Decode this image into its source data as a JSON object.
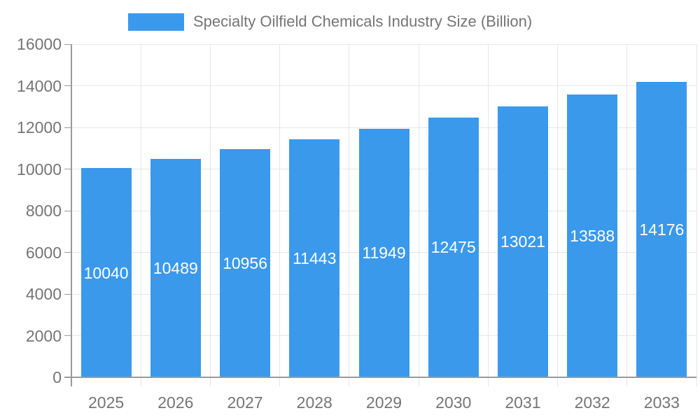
{
  "chart_data": {
    "type": "bar",
    "legend": [
      "Specialty Oilfield Chemicals Industry Size (Billion)"
    ],
    "legend_position": "top",
    "categories": [
      "2025",
      "2026",
      "2027",
      "2028",
      "2029",
      "2030",
      "2031",
      "2032",
      "2033"
    ],
    "values": [
      10040,
      10489,
      10956,
      11443,
      11949,
      12475,
      13021,
      13588,
      14176
    ],
    "xlabel": "",
    "ylabel": "",
    "ylim": [
      0,
      16000
    ],
    "yticks": [
      0,
      2000,
      4000,
      6000,
      8000,
      10000,
      12000,
      14000,
      16000
    ],
    "grid": true,
    "value_labels_inside_bars": true,
    "colors": {
      "bar": "#3b99ec",
      "gridline": "#e6e6e6",
      "axis_line": "#9a9a9a",
      "axis_text": "#757575",
      "legend_text": "#757575",
      "value_label": "#ffffff",
      "background": "#ffffff"
    }
  }
}
